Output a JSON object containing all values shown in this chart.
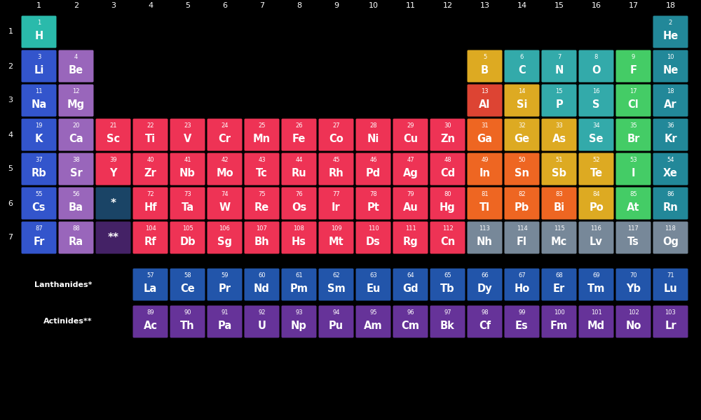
{
  "background": "#000000",
  "colors": {
    "hydrogen": "#2abaab",
    "alkali_metal": "#3355cc",
    "alkaline_earth": "#9966bb",
    "transition_metal": "#ee3355",
    "post_transition_orange": "#ee6622",
    "post_transition_red": "#dd4433",
    "metalloid_orange": "#ddaa22",
    "metalloid_teal": "#33aaaa",
    "nonmetal": "#33aaaa",
    "halogen": "#44cc66",
    "noble_gas": "#228899",
    "lanthanide": "#2255aa",
    "actinide": "#663399",
    "unknown": "#778899",
    "star6": "#1a4466",
    "star7": "#442266"
  },
  "elements": [
    {
      "symbol": "H",
      "number": 1,
      "period": 1,
      "group": 1,
      "color_key": "hydrogen"
    },
    {
      "symbol": "He",
      "number": 2,
      "period": 1,
      "group": 18,
      "color_key": "noble_gas"
    },
    {
      "symbol": "Li",
      "number": 3,
      "period": 2,
      "group": 1,
      "color_key": "alkali_metal"
    },
    {
      "symbol": "Be",
      "number": 4,
      "period": 2,
      "group": 2,
      "color_key": "alkaline_earth"
    },
    {
      "symbol": "B",
      "number": 5,
      "period": 2,
      "group": 13,
      "color_key": "metalloid_orange"
    },
    {
      "symbol": "C",
      "number": 6,
      "period": 2,
      "group": 14,
      "color_key": "nonmetal"
    },
    {
      "symbol": "N",
      "number": 7,
      "period": 2,
      "group": 15,
      "color_key": "nonmetal"
    },
    {
      "symbol": "O",
      "number": 8,
      "period": 2,
      "group": 16,
      "color_key": "nonmetal"
    },
    {
      "symbol": "F",
      "number": 9,
      "period": 2,
      "group": 17,
      "color_key": "halogen"
    },
    {
      "symbol": "Ne",
      "number": 10,
      "period": 2,
      "group": 18,
      "color_key": "noble_gas"
    },
    {
      "symbol": "Na",
      "number": 11,
      "period": 3,
      "group": 1,
      "color_key": "alkali_metal"
    },
    {
      "symbol": "Mg",
      "number": 12,
      "period": 3,
      "group": 2,
      "color_key": "alkaline_earth"
    },
    {
      "symbol": "Al",
      "number": 13,
      "period": 3,
      "group": 13,
      "color_key": "post_transition_red"
    },
    {
      "symbol": "Si",
      "number": 14,
      "period": 3,
      "group": 14,
      "color_key": "metalloid_orange"
    },
    {
      "symbol": "P",
      "number": 15,
      "period": 3,
      "group": 15,
      "color_key": "nonmetal"
    },
    {
      "symbol": "S",
      "number": 16,
      "period": 3,
      "group": 16,
      "color_key": "nonmetal"
    },
    {
      "symbol": "Cl",
      "number": 17,
      "period": 3,
      "group": 17,
      "color_key": "halogen"
    },
    {
      "symbol": "Ar",
      "number": 18,
      "period": 3,
      "group": 18,
      "color_key": "noble_gas"
    },
    {
      "symbol": "K",
      "number": 19,
      "period": 4,
      "group": 1,
      "color_key": "alkali_metal"
    },
    {
      "symbol": "Ca",
      "number": 20,
      "period": 4,
      "group": 2,
      "color_key": "alkaline_earth"
    },
    {
      "symbol": "Sc",
      "number": 21,
      "period": 4,
      "group": 3,
      "color_key": "transition_metal"
    },
    {
      "symbol": "Ti",
      "number": 22,
      "period": 4,
      "group": 4,
      "color_key": "transition_metal"
    },
    {
      "symbol": "V",
      "number": 23,
      "period": 4,
      "group": 5,
      "color_key": "transition_metal"
    },
    {
      "symbol": "Cr",
      "number": 24,
      "period": 4,
      "group": 6,
      "color_key": "transition_metal"
    },
    {
      "symbol": "Mn",
      "number": 25,
      "period": 4,
      "group": 7,
      "color_key": "transition_metal"
    },
    {
      "symbol": "Fe",
      "number": 26,
      "period": 4,
      "group": 8,
      "color_key": "transition_metal"
    },
    {
      "symbol": "Co",
      "number": 27,
      "period": 4,
      "group": 9,
      "color_key": "transition_metal"
    },
    {
      "symbol": "Ni",
      "number": 28,
      "period": 4,
      "group": 10,
      "color_key": "transition_metal"
    },
    {
      "symbol": "Cu",
      "number": 29,
      "period": 4,
      "group": 11,
      "color_key": "transition_metal"
    },
    {
      "symbol": "Zn",
      "number": 30,
      "period": 4,
      "group": 12,
      "color_key": "transition_metal"
    },
    {
      "symbol": "Ga",
      "number": 31,
      "period": 4,
      "group": 13,
      "color_key": "post_transition_orange"
    },
    {
      "symbol": "Ge",
      "number": 32,
      "period": 4,
      "group": 14,
      "color_key": "metalloid_orange"
    },
    {
      "symbol": "As",
      "number": 33,
      "period": 4,
      "group": 15,
      "color_key": "metalloid_orange"
    },
    {
      "symbol": "Se",
      "number": 34,
      "period": 4,
      "group": 16,
      "color_key": "nonmetal"
    },
    {
      "symbol": "Br",
      "number": 35,
      "period": 4,
      "group": 17,
      "color_key": "halogen"
    },
    {
      "symbol": "Kr",
      "number": 36,
      "period": 4,
      "group": 18,
      "color_key": "noble_gas"
    },
    {
      "symbol": "Rb",
      "number": 37,
      "period": 5,
      "group": 1,
      "color_key": "alkali_metal"
    },
    {
      "symbol": "Sr",
      "number": 38,
      "period": 5,
      "group": 2,
      "color_key": "alkaline_earth"
    },
    {
      "symbol": "Y",
      "number": 39,
      "period": 5,
      "group": 3,
      "color_key": "transition_metal"
    },
    {
      "symbol": "Zr",
      "number": 40,
      "period": 5,
      "group": 4,
      "color_key": "transition_metal"
    },
    {
      "symbol": "Nb",
      "number": 41,
      "period": 5,
      "group": 5,
      "color_key": "transition_metal"
    },
    {
      "symbol": "Mo",
      "number": 42,
      "period": 5,
      "group": 6,
      "color_key": "transition_metal"
    },
    {
      "symbol": "Tc",
      "number": 43,
      "period": 5,
      "group": 7,
      "color_key": "transition_metal"
    },
    {
      "symbol": "Ru",
      "number": 44,
      "period": 5,
      "group": 8,
      "color_key": "transition_metal"
    },
    {
      "symbol": "Rh",
      "number": 45,
      "period": 5,
      "group": 9,
      "color_key": "transition_metal"
    },
    {
      "symbol": "Pd",
      "number": 46,
      "period": 5,
      "group": 10,
      "color_key": "transition_metal"
    },
    {
      "symbol": "Ag",
      "number": 47,
      "period": 5,
      "group": 11,
      "color_key": "transition_metal"
    },
    {
      "symbol": "Cd",
      "number": 48,
      "period": 5,
      "group": 12,
      "color_key": "transition_metal"
    },
    {
      "symbol": "In",
      "number": 49,
      "period": 5,
      "group": 13,
      "color_key": "post_transition_orange"
    },
    {
      "symbol": "Sn",
      "number": 50,
      "period": 5,
      "group": 14,
      "color_key": "post_transition_orange"
    },
    {
      "symbol": "Sb",
      "number": 51,
      "period": 5,
      "group": 15,
      "color_key": "metalloid_orange"
    },
    {
      "symbol": "Te",
      "number": 52,
      "period": 5,
      "group": 16,
      "color_key": "metalloid_orange"
    },
    {
      "symbol": "I",
      "number": 53,
      "period": 5,
      "group": 17,
      "color_key": "halogen"
    },
    {
      "symbol": "Xe",
      "number": 54,
      "period": 5,
      "group": 18,
      "color_key": "noble_gas"
    },
    {
      "symbol": "Cs",
      "number": 55,
      "period": 6,
      "group": 1,
      "color_key": "alkali_metal"
    },
    {
      "symbol": "Ba",
      "number": 56,
      "period": 6,
      "group": 2,
      "color_key": "alkaline_earth"
    },
    {
      "symbol": "Hf",
      "number": 72,
      "period": 6,
      "group": 4,
      "color_key": "transition_metal"
    },
    {
      "symbol": "Ta",
      "number": 73,
      "period": 6,
      "group": 5,
      "color_key": "transition_metal"
    },
    {
      "symbol": "W",
      "number": 74,
      "period": 6,
      "group": 6,
      "color_key": "transition_metal"
    },
    {
      "symbol": "Re",
      "number": 75,
      "period": 6,
      "group": 7,
      "color_key": "transition_metal"
    },
    {
      "symbol": "Os",
      "number": 76,
      "period": 6,
      "group": 8,
      "color_key": "transition_metal"
    },
    {
      "symbol": "Ir",
      "number": 77,
      "period": 6,
      "group": 9,
      "color_key": "transition_metal"
    },
    {
      "symbol": "Pt",
      "number": 78,
      "period": 6,
      "group": 10,
      "color_key": "transition_metal"
    },
    {
      "symbol": "Au",
      "number": 79,
      "period": 6,
      "group": 11,
      "color_key": "transition_metal"
    },
    {
      "symbol": "Hg",
      "number": 80,
      "period": 6,
      "group": 12,
      "color_key": "transition_metal"
    },
    {
      "symbol": "Tl",
      "number": 81,
      "period": 6,
      "group": 13,
      "color_key": "post_transition_orange"
    },
    {
      "symbol": "Pb",
      "number": 82,
      "period": 6,
      "group": 14,
      "color_key": "post_transition_orange"
    },
    {
      "symbol": "Bi",
      "number": 83,
      "period": 6,
      "group": 15,
      "color_key": "post_transition_orange"
    },
    {
      "symbol": "Po",
      "number": 84,
      "period": 6,
      "group": 16,
      "color_key": "metalloid_orange"
    },
    {
      "symbol": "At",
      "number": 85,
      "period": 6,
      "group": 17,
      "color_key": "halogen"
    },
    {
      "symbol": "Rn",
      "number": 86,
      "period": 6,
      "group": 18,
      "color_key": "noble_gas"
    },
    {
      "symbol": "Fr",
      "number": 87,
      "period": 7,
      "group": 1,
      "color_key": "alkali_metal"
    },
    {
      "symbol": "Ra",
      "number": 88,
      "period": 7,
      "group": 2,
      "color_key": "alkaline_earth"
    },
    {
      "symbol": "Rf",
      "number": 104,
      "period": 7,
      "group": 4,
      "color_key": "transition_metal"
    },
    {
      "symbol": "Db",
      "number": 105,
      "period": 7,
      "group": 5,
      "color_key": "transition_metal"
    },
    {
      "symbol": "Sg",
      "number": 106,
      "period": 7,
      "group": 6,
      "color_key": "transition_metal"
    },
    {
      "symbol": "Bh",
      "number": 107,
      "period": 7,
      "group": 7,
      "color_key": "transition_metal"
    },
    {
      "symbol": "Hs",
      "number": 108,
      "period": 7,
      "group": 8,
      "color_key": "transition_metal"
    },
    {
      "symbol": "Mt",
      "number": 109,
      "period": 7,
      "group": 9,
      "color_key": "transition_metal"
    },
    {
      "symbol": "Ds",
      "number": 110,
      "period": 7,
      "group": 10,
      "color_key": "transition_metal"
    },
    {
      "symbol": "Rg",
      "number": 111,
      "period": 7,
      "group": 11,
      "color_key": "transition_metal"
    },
    {
      "symbol": "Cn",
      "number": 112,
      "period": 7,
      "group": 12,
      "color_key": "transition_metal"
    },
    {
      "symbol": "Nh",
      "number": 113,
      "period": 7,
      "group": 13,
      "color_key": "unknown"
    },
    {
      "symbol": "Fl",
      "number": 114,
      "period": 7,
      "group": 14,
      "color_key": "unknown"
    },
    {
      "symbol": "Mc",
      "number": 115,
      "period": 7,
      "group": 15,
      "color_key": "unknown"
    },
    {
      "symbol": "Lv",
      "number": 116,
      "period": 7,
      "group": 16,
      "color_key": "unknown"
    },
    {
      "symbol": "Ts",
      "number": 117,
      "period": 7,
      "group": 17,
      "color_key": "unknown"
    },
    {
      "symbol": "Og",
      "number": 118,
      "period": 7,
      "group": 18,
      "color_key": "unknown"
    },
    {
      "symbol": "La",
      "number": 57,
      "row": 9,
      "col": 4,
      "color_key": "lanthanide"
    },
    {
      "symbol": "Ce",
      "number": 58,
      "row": 9,
      "col": 5,
      "color_key": "lanthanide"
    },
    {
      "symbol": "Pr",
      "number": 59,
      "row": 9,
      "col": 6,
      "color_key": "lanthanide"
    },
    {
      "symbol": "Nd",
      "number": 60,
      "row": 9,
      "col": 7,
      "color_key": "lanthanide"
    },
    {
      "symbol": "Pm",
      "number": 61,
      "row": 9,
      "col": 8,
      "color_key": "lanthanide"
    },
    {
      "symbol": "Sm",
      "number": 62,
      "row": 9,
      "col": 9,
      "color_key": "lanthanide"
    },
    {
      "symbol": "Eu",
      "number": 63,
      "row": 9,
      "col": 10,
      "color_key": "lanthanide"
    },
    {
      "symbol": "Gd",
      "number": 64,
      "row": 9,
      "col": 11,
      "color_key": "lanthanide"
    },
    {
      "symbol": "Tb",
      "number": 65,
      "row": 9,
      "col": 12,
      "color_key": "lanthanide"
    },
    {
      "symbol": "Dy",
      "number": 66,
      "row": 9,
      "col": 13,
      "color_key": "lanthanide"
    },
    {
      "symbol": "Ho",
      "number": 67,
      "row": 9,
      "col": 14,
      "color_key": "lanthanide"
    },
    {
      "symbol": "Er",
      "number": 68,
      "row": 9,
      "col": 15,
      "color_key": "lanthanide"
    },
    {
      "symbol": "Tm",
      "number": 69,
      "row": 9,
      "col": 16,
      "color_key": "lanthanide"
    },
    {
      "symbol": "Yb",
      "number": 70,
      "row": 9,
      "col": 17,
      "color_key": "lanthanide"
    },
    {
      "symbol": "Lu",
      "number": 71,
      "row": 9,
      "col": 18,
      "color_key": "lanthanide"
    },
    {
      "symbol": "Ac",
      "number": 89,
      "row": 10,
      "col": 4,
      "color_key": "actinide"
    },
    {
      "symbol": "Th",
      "number": 90,
      "row": 10,
      "col": 5,
      "color_key": "actinide"
    },
    {
      "symbol": "Pa",
      "number": 91,
      "row": 10,
      "col": 6,
      "color_key": "actinide"
    },
    {
      "symbol": "U",
      "number": 92,
      "row": 10,
      "col": 7,
      "color_key": "actinide"
    },
    {
      "symbol": "Np",
      "number": 93,
      "row": 10,
      "col": 8,
      "color_key": "actinide"
    },
    {
      "symbol": "Pu",
      "number": 94,
      "row": 10,
      "col": 9,
      "color_key": "actinide"
    },
    {
      "symbol": "Am",
      "number": 95,
      "row": 10,
      "col": 10,
      "color_key": "actinide"
    },
    {
      "symbol": "Cm",
      "number": 96,
      "row": 10,
      "col": 11,
      "color_key": "actinide"
    },
    {
      "symbol": "Bk",
      "number": 97,
      "row": 10,
      "col": 12,
      "color_key": "actinide"
    },
    {
      "symbol": "Cf",
      "number": 98,
      "row": 10,
      "col": 13,
      "color_key": "actinide"
    },
    {
      "symbol": "Es",
      "number": 99,
      "row": 10,
      "col": 14,
      "color_key": "actinide"
    },
    {
      "symbol": "Fm",
      "number": 100,
      "row": 10,
      "col": 15,
      "color_key": "actinide"
    },
    {
      "symbol": "Md",
      "number": 101,
      "row": 10,
      "col": 16,
      "color_key": "actinide"
    },
    {
      "symbol": "No",
      "number": 102,
      "row": 10,
      "col": 17,
      "color_key": "actinide"
    },
    {
      "symbol": "Lr",
      "number": 103,
      "row": 10,
      "col": 18,
      "color_key": "actinide"
    }
  ]
}
